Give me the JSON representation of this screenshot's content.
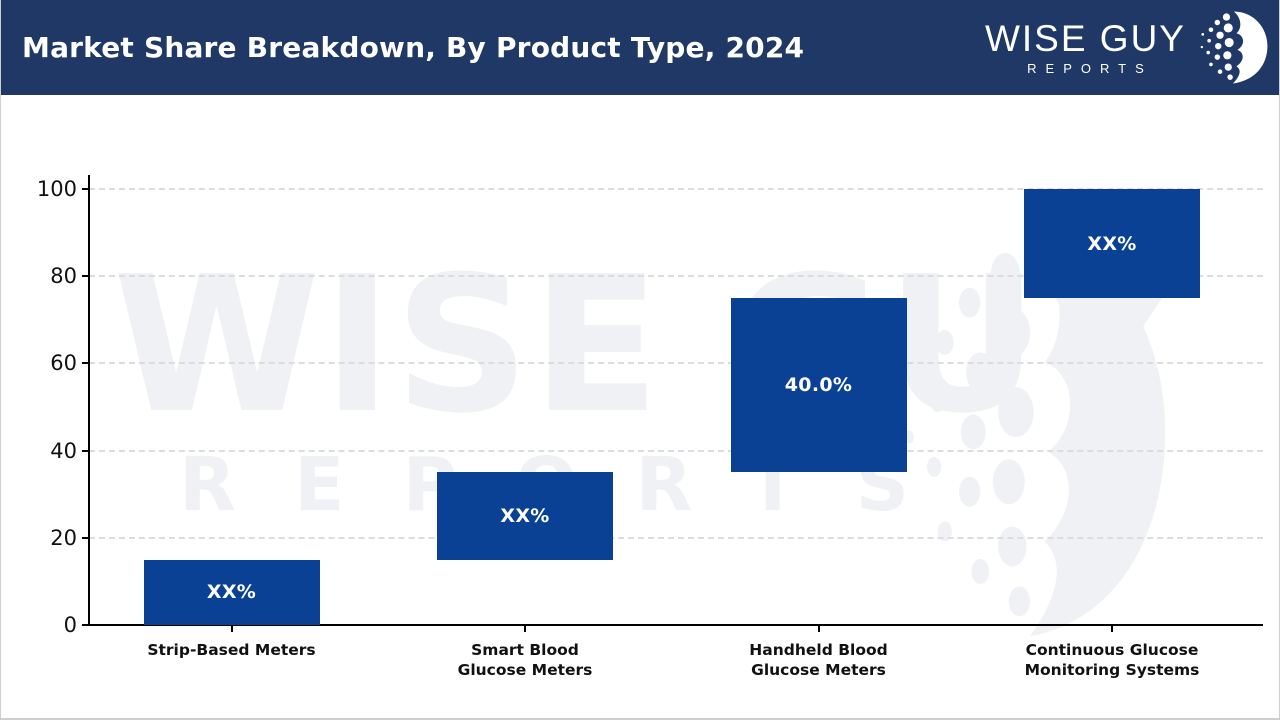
{
  "header": {
    "title": "Market Share Breakdown, By Product Type, 2024",
    "bg_color": "#1f3865",
    "logo": {
      "line1": "WISE GUY",
      "line2": "REPORTS"
    }
  },
  "watermark": {
    "line1": "WISE GUY",
    "line2": "REPORTS"
  },
  "chart_data": {
    "type": "bar",
    "subtype": "waterfall-floating-segments",
    "title": "Market Share Breakdown, By Product Type, 2024",
    "categories": [
      [
        "Strip-Based Meters"
      ],
      [
        "Smart Blood",
        "Glucose Meters"
      ],
      [
        "Handheld Blood",
        "Glucose Meters"
      ],
      [
        "Continuous Glucose",
        "Monitoring Systems"
      ]
    ],
    "segments": [
      {
        "start": 0,
        "end": 15,
        "label": "XX%"
      },
      {
        "start": 15,
        "end": 35,
        "label": "XX%"
      },
      {
        "start": 35,
        "end": 75,
        "label": "40.0%"
      },
      {
        "start": 75,
        "end": 100,
        "label": "XX%"
      }
    ],
    "ylim": [
      0,
      100
    ],
    "yticks": [
      0,
      20,
      40,
      60,
      80,
      100
    ],
    "xlabel": "",
    "ylabel": "",
    "legend": "none",
    "grid": "horizontal-dashed",
    "bar_color": "#0b4195",
    "bar_label_color": "#ffffff",
    "axis_color": "#000000",
    "gridline_color": "#dcdcdc"
  }
}
